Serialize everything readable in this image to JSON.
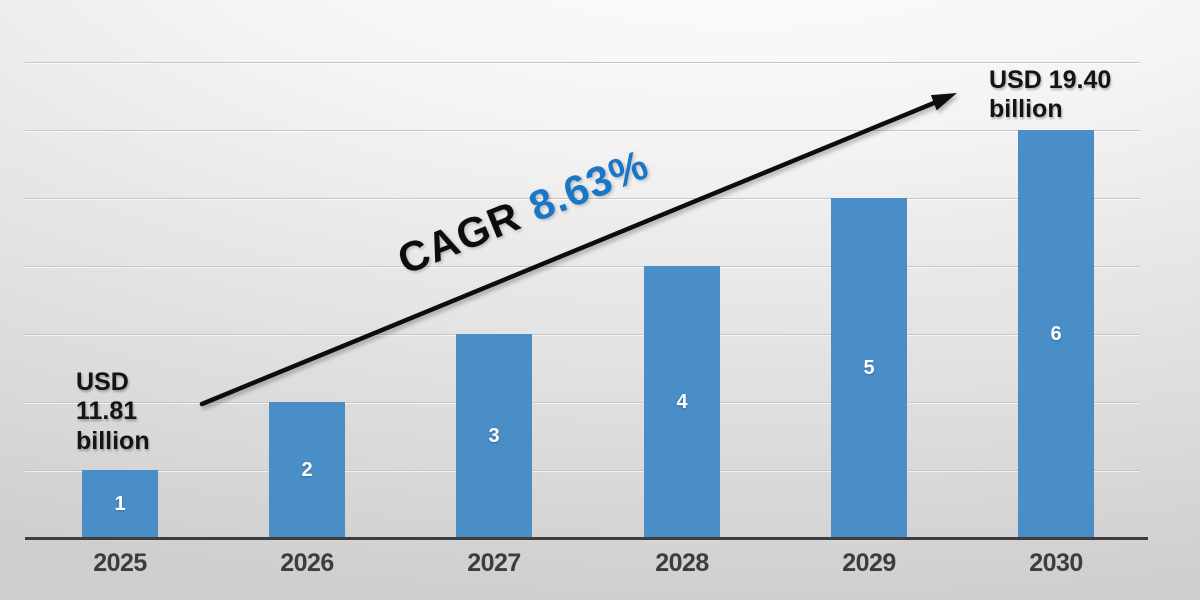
{
  "chart_data": {
    "type": "bar",
    "title": "",
    "xlabel": "",
    "ylabel": "",
    "categories": [
      "2025",
      "2026",
      "2027",
      "2028",
      "2029",
      "2030"
    ],
    "values": [
      1,
      2,
      3,
      4,
      5,
      6
    ],
    "bar_labels": [
      "1",
      "2",
      "3",
      "4",
      "5",
      "6"
    ],
    "ylim": [
      0,
      7
    ],
    "grid": "horizontal",
    "legend": "none",
    "annotations": {
      "start_value_label": "USD 11.81 billion",
      "end_value_label": "USD 19.40 billion",
      "cagr_label": "CAGR",
      "cagr_value": "8.63%",
      "trend_arrow": "up-right"
    },
    "colors": {
      "bar": "#4a8ec8",
      "bar_label_text": "#ffffff",
      "cagr_label_text": "#0d0d0d",
      "cagr_value_text": "#1b76c5",
      "annotation_text": "#141414",
      "axis_line": "#3d3d3d",
      "gridline": "#c6c6c6",
      "tick_label": "#3d3d3d",
      "arrow": "#0d0d0d"
    }
  }
}
